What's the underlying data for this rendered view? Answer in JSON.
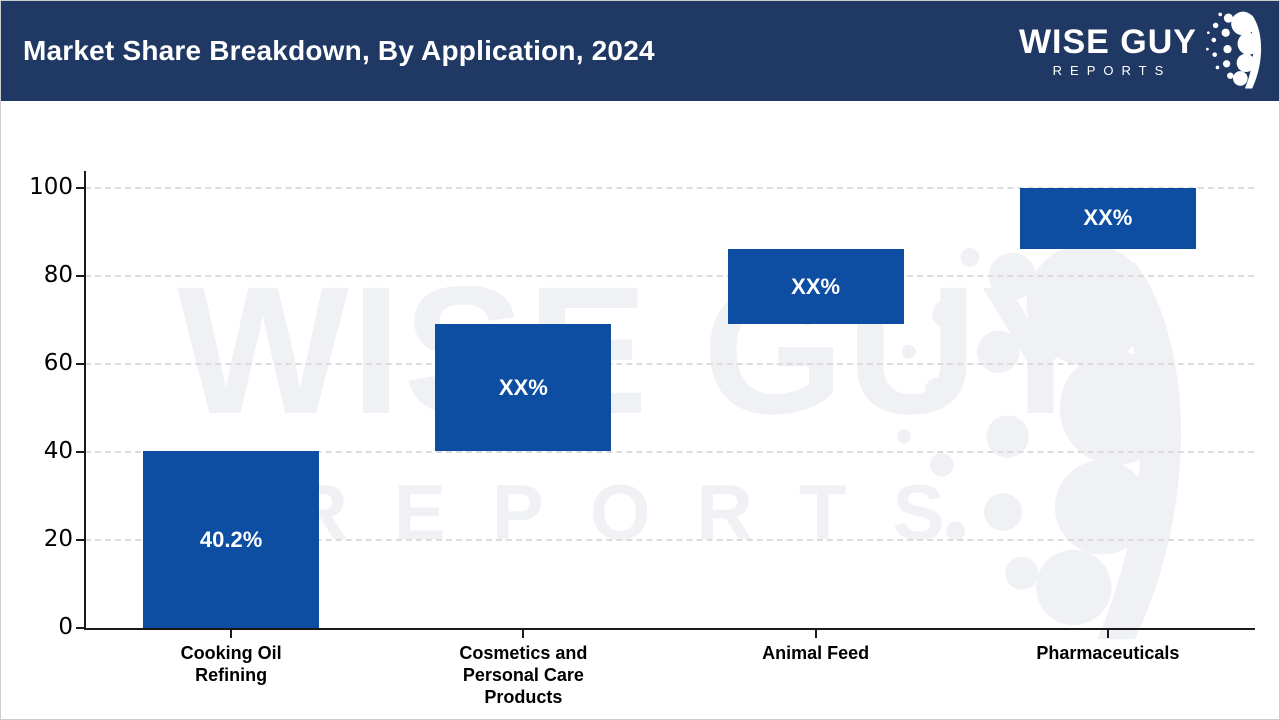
{
  "header": {
    "title": "Market Share Breakdown, By Application, 2024",
    "bg_color": "#1f3864",
    "logo_line1": "WISE GUY",
    "logo_line2": "REPORTS"
  },
  "watermark": {
    "line1": "WISE GUY",
    "line2": "REPORTS"
  },
  "chart_data": {
    "type": "bar",
    "subtype": "floating-waterfall",
    "title": "Market Share Breakdown, By Application, 2024",
    "categories": [
      [
        "Cooking Oil",
        "Refining"
      ],
      [
        "Cosmetics and",
        "Personal Care",
        "Products"
      ],
      [
        "Animal Feed"
      ],
      [
        "Pharmaceuticals"
      ]
    ],
    "segments": [
      {
        "label": "40.2%",
        "start": 0,
        "end": 40.2,
        "value": 40.2
      },
      {
        "label": "XX%",
        "start": 40.2,
        "end": 69,
        "value": 28.8
      },
      {
        "label": "XX%",
        "start": 69,
        "end": 86.2,
        "value": 17.2
      },
      {
        "label": "XX%",
        "start": 86.2,
        "end": 100,
        "value": 13.8
      }
    ],
    "yticks": [
      0,
      20,
      40,
      60,
      80,
      100
    ],
    "ylim": [
      0,
      100
    ],
    "xlabel": "",
    "ylabel": "",
    "grid": "horizontal-dashed",
    "legend": "none",
    "bar_color": "#0d4da2",
    "value_label_color": "#ffffff"
  }
}
